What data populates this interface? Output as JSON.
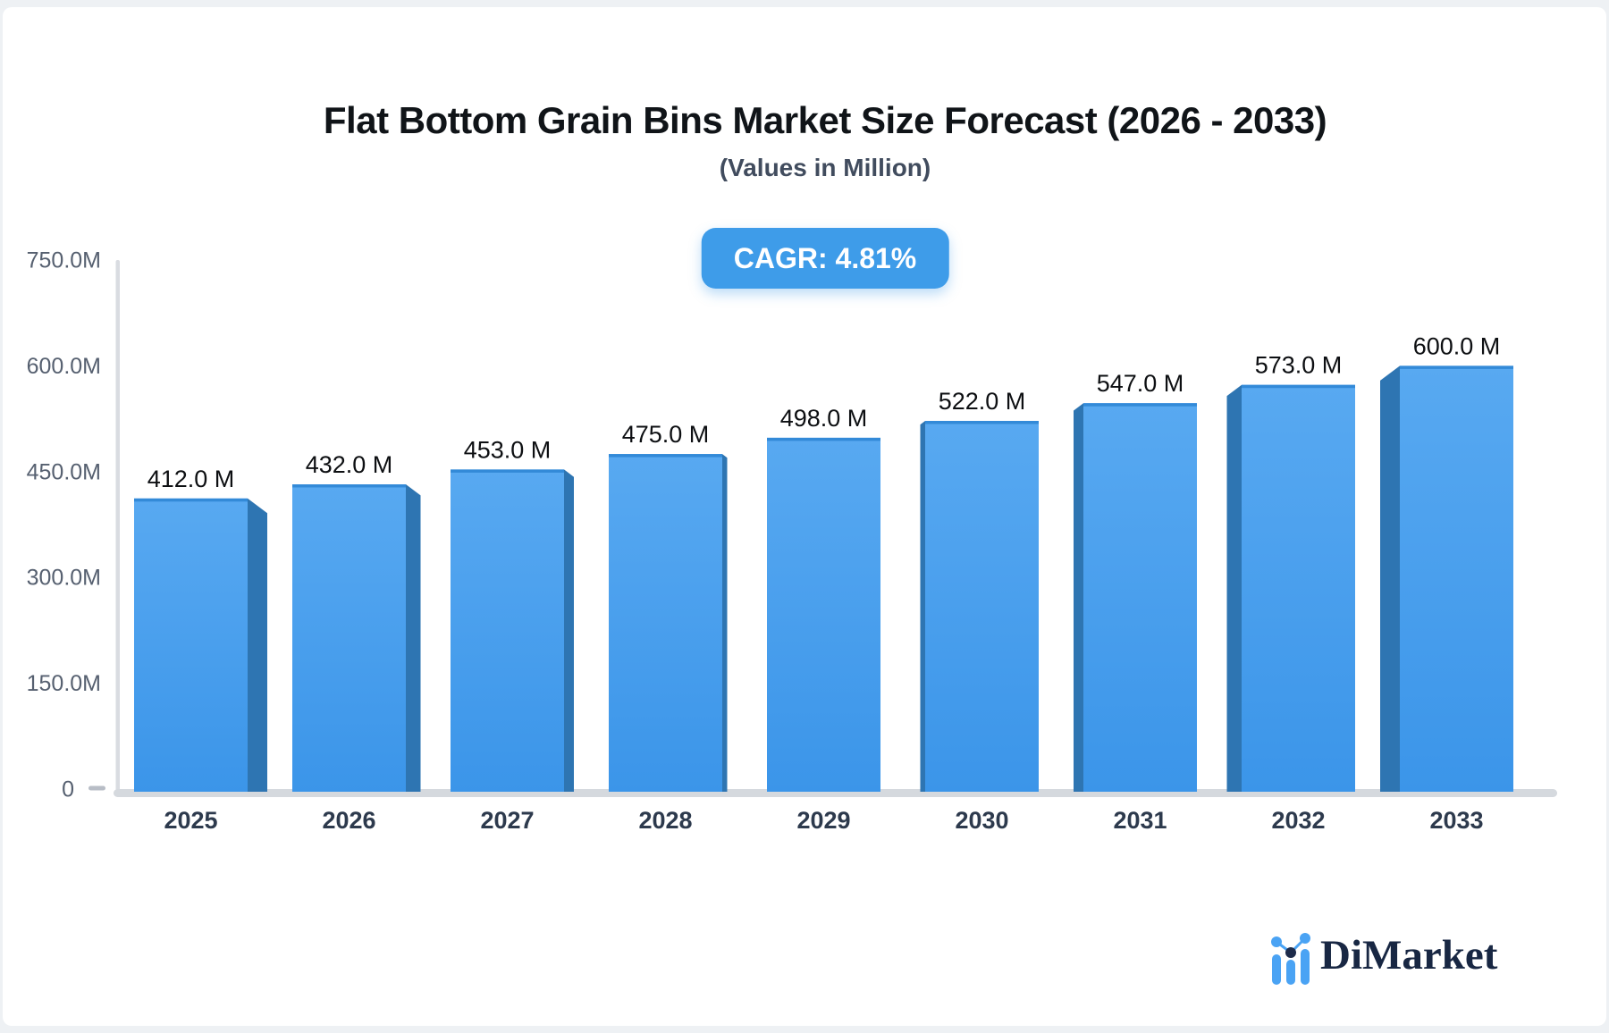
{
  "theme": {
    "page_background": "#eef1f4",
    "card_background": "#ffffff",
    "accent_blue": "#3e9ce9"
  },
  "cagr_badge": {
    "label": "CAGR: 4.81%",
    "background": "#3e9ce9",
    "text_color": "#ffffff"
  },
  "logo": {
    "text": "DiMarket",
    "text_color": "#182743",
    "icon": "mini-bar-chart-with-dots",
    "icon_color": "#4aa3f4"
  },
  "chart_data": {
    "type": "bar",
    "title": "Flat Bottom Grain Bins Market Size Forecast (2026 - 2033)",
    "subtitle": "(Values in Million)",
    "annotation": "CAGR: 4.81%",
    "unit": "Million",
    "categories": [
      "2025",
      "2026",
      "2027",
      "2028",
      "2029",
      "2030",
      "2031",
      "2032",
      "2033"
    ],
    "values": [
      412,
      432,
      453,
      475,
      498,
      522,
      547,
      573,
      600
    ],
    "value_labels": [
      "412.0 M",
      "432.0 M",
      "453.0 M",
      "475.0 M",
      "498.0 M",
      "522.0 M",
      "547.0 M",
      "573.0 M",
      "600.0 M"
    ],
    "xlabel": "",
    "ylabel": "",
    "ylim": [
      0,
      750
    ],
    "y_ticks": [
      {
        "value": 750,
        "label": "750.0M"
      },
      {
        "value": 600,
        "label": "600.0M"
      },
      {
        "value": 450,
        "label": "450.0M"
      },
      {
        "value": 300,
        "label": "300.0M"
      },
      {
        "value": 150,
        "label": "150.0M"
      },
      {
        "value": 0,
        "label": "0"
      }
    ],
    "grid": "off",
    "legend": "none",
    "style": "3d-columns-central-perspective",
    "colors": {
      "bar_top": "#58a9f1",
      "bar_bottom": "#3b95e9",
      "bar_cap": "#338ad8",
      "bar_side": "#2e75b2",
      "axis_line": "#d9dce1",
      "baseline": "#d5d9de",
      "tick_dash": "#b8bdc6",
      "tick_label": "#566070",
      "category_label": "#2d3a4d",
      "value_label": "#0d0f12"
    }
  }
}
